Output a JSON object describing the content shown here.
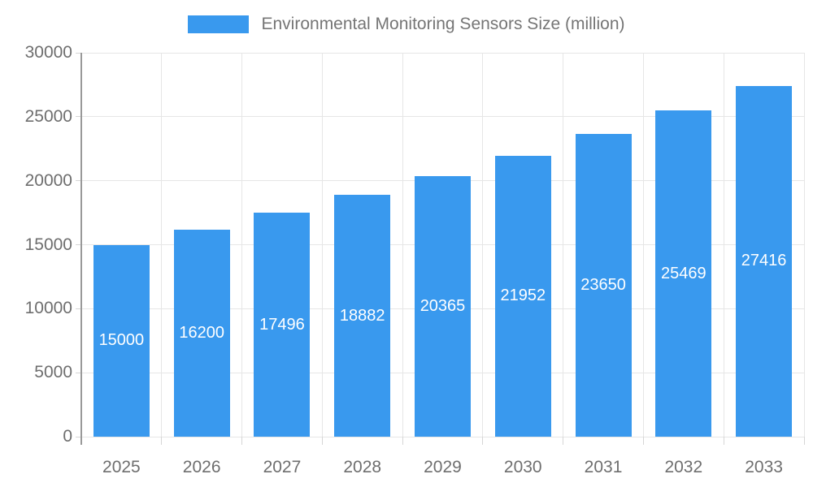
{
  "chart_data": {
    "type": "bar",
    "title": "Environmental Monitoring Sensors Size (million)",
    "categories": [
      "2025",
      "2026",
      "2027",
      "2028",
      "2029",
      "2030",
      "2031",
      "2032",
      "2033"
    ],
    "series": [
      {
        "name": "Environmental Monitoring Sensors Size (million)",
        "values": [
          15000,
          16200,
          17496,
          18882,
          20365,
          21952,
          23650,
          25469,
          27416
        ]
      }
    ],
    "xlabel": "",
    "ylabel": "",
    "ylim": [
      0,
      30000
    ],
    "yticks": [
      0,
      5000,
      10000,
      15000,
      20000,
      25000,
      30000
    ],
    "grid": true,
    "legend_position": "top-center",
    "bar_labels_visible": true,
    "colors": {
      "bar": "#3999ee",
      "bar_label_text": "#ffffff",
      "grid_line": "#e6e6e6",
      "axis_line": "#999999",
      "tick_mark": "#d6d6d6",
      "axis_text": "#6e6e6e",
      "legend_text": "#757575",
      "background": "#ffffff"
    }
  }
}
